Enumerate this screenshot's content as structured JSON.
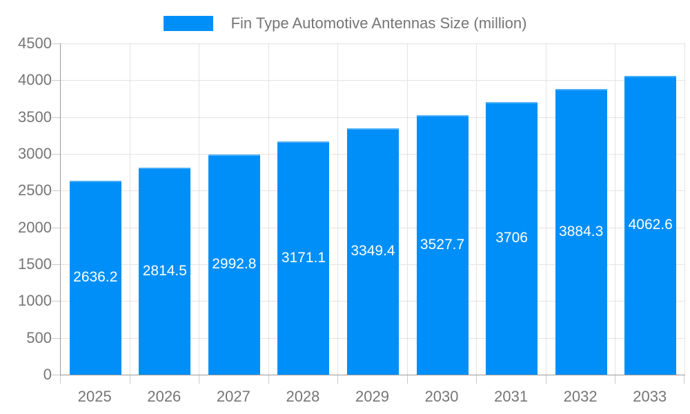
{
  "legend": {
    "label": "Fin Type Automotive Antennas Size (million)"
  },
  "colors": {
    "bar": "#008ff8",
    "grid": "#e3e3e3",
    "tick": "#c9c9c9",
    "axis": "#9a9a9a",
    "axis_text": "#757575",
    "bar_label_text": "#ffffff",
    "background": "#ffffff"
  },
  "chart_data": {
    "type": "bar",
    "title": "Fin Type Automotive Antennas Size (million)",
    "xlabel": "",
    "ylabel": "",
    "categories": [
      "2025",
      "2026",
      "2027",
      "2028",
      "2029",
      "2030",
      "2031",
      "2032",
      "2033"
    ],
    "values": [
      2636.2,
      2814.5,
      2992.8,
      3171.1,
      3349.4,
      3527.7,
      3706,
      3884.3,
      4062.6
    ],
    "value_labels": [
      "2636.2",
      "2814.5",
      "2992.8",
      "3171.1",
      "3349.4",
      "3527.7",
      "3706",
      "3884.3",
      "4062.6"
    ],
    "series": [
      {
        "name": "Fin Type Automotive Antennas Size (million)",
        "values": [
          2636.2,
          2814.5,
          2992.8,
          3171.1,
          3349.4,
          3527.7,
          3706,
          3884.3,
          4062.6
        ]
      }
    ],
    "ylim": [
      0,
      4500
    ],
    "y_tick_step": 500,
    "y_ticks": [
      "0",
      "500",
      "1000",
      "1500",
      "2000",
      "2500",
      "3000",
      "3500",
      "4000",
      "4500"
    ],
    "grid": true,
    "legend_position": "top"
  }
}
